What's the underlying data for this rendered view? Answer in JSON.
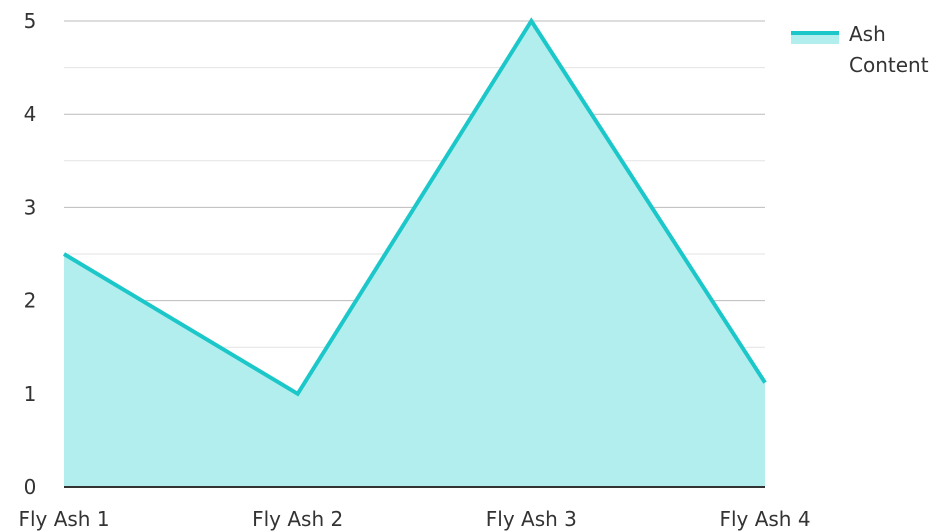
{
  "chart_data": {
    "type": "area",
    "categories": [
      "Fly Ash 1",
      "Fly Ash 2",
      "Fly Ash 3",
      "Fly Ash 4"
    ],
    "series": [
      {
        "name": "Ash Content",
        "values": [
          2.5,
          1.0,
          5.0,
          1.12
        ]
      }
    ],
    "ylim": [
      0,
      5
    ],
    "yticks": [
      "0",
      "1",
      "2",
      "3",
      "4",
      "5"
    ],
    "grid": true,
    "legend": {
      "position": "top-right",
      "lines": [
        "Ash",
        "Content"
      ]
    },
    "colors": {
      "line": "#1cc7c9",
      "fill": "#b2eeee",
      "grid_major": "#bbbbbb",
      "grid_minor": "#e3e3e3",
      "axis": "#333333"
    }
  }
}
